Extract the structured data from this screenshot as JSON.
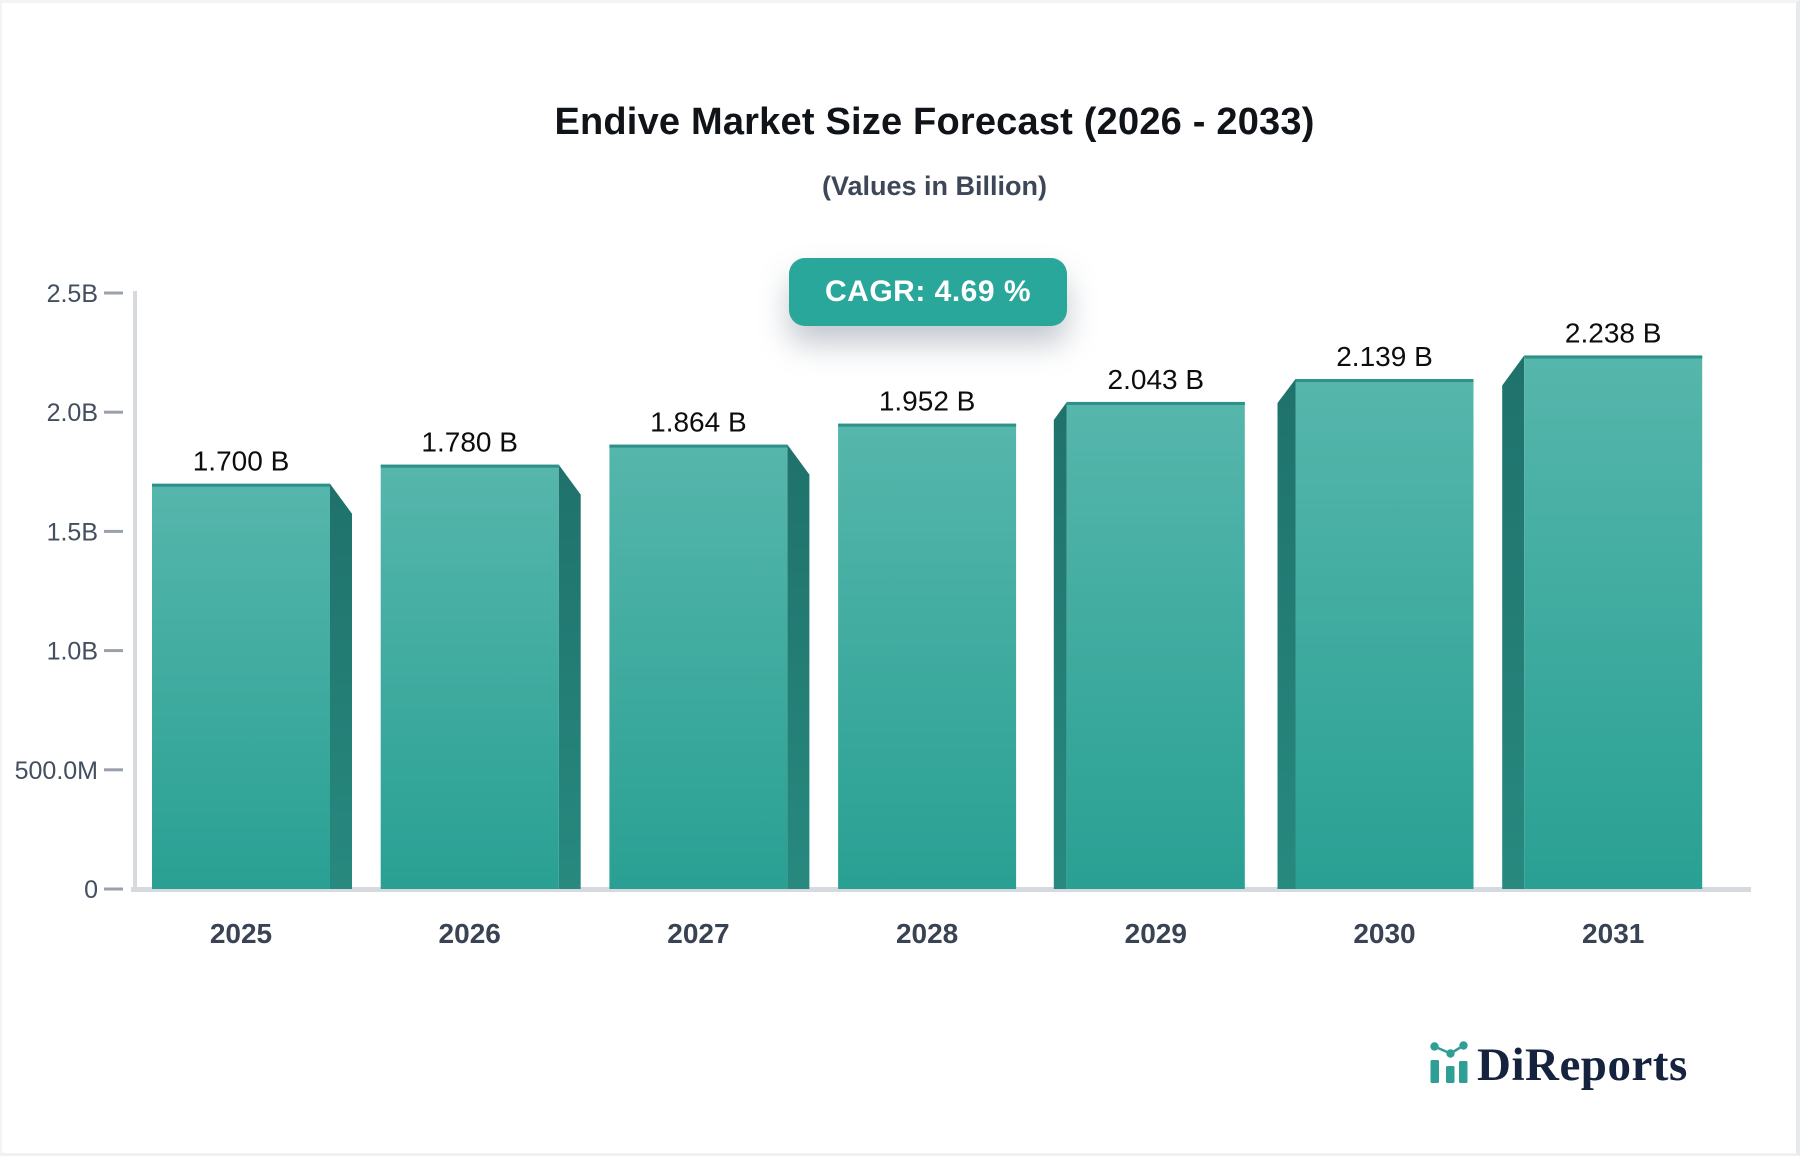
{
  "header": {
    "title": "Endive Market Size Forecast (2026 - 2033)",
    "subtitle": "(Values in Billion)",
    "cagr_label": "CAGR: 4.69 %"
  },
  "brand": {
    "name": "DiReports",
    "icon": "bar-chart-with-trend-dots-icon"
  },
  "colors": {
    "accent_teal": "#2aa79b",
    "bar_face_top": "#56b6ac",
    "bar_face_bottom": "#29a093",
    "bar_top_edge": "#2e9188",
    "bar_side_top": "#1f726c",
    "bar_side_bottom": "#27897f",
    "axis_line": "#d6d9de",
    "tick_mark": "#9ba1ac",
    "ytick_text": "#434e5e",
    "xtick_text": "#3a4353",
    "value_text": "#0c0d0f",
    "logo_navy": "#16233e",
    "logo_teal": "#2f9e95"
  },
  "chart_data": {
    "type": "bar",
    "title": "Endive Market Size Forecast (2026 - 2033)",
    "subtitle": "(Values in Billion)",
    "categories": [
      "2025",
      "2026",
      "2027",
      "2028",
      "2029",
      "2030",
      "2031"
    ],
    "values": [
      1.7,
      1.78,
      1.864,
      1.952,
      2.043,
      2.139,
      2.238
    ],
    "value_labels": [
      "1.700 B",
      "1.780 B",
      "1.864 B",
      "1.952 B",
      "2.043 B",
      "2.139 B",
      "2.238 B"
    ],
    "unit": "Billion",
    "cagr_pct": 4.69,
    "xlabel": "",
    "ylabel": "",
    "ylim": [
      0,
      2.5
    ],
    "ytick_labels": [
      "0",
      "500.0M",
      "1.0B",
      "1.5B",
      "2.0B",
      "2.5B"
    ],
    "grid": false,
    "legend": false,
    "style": "3d-perspective-teal-bars"
  }
}
